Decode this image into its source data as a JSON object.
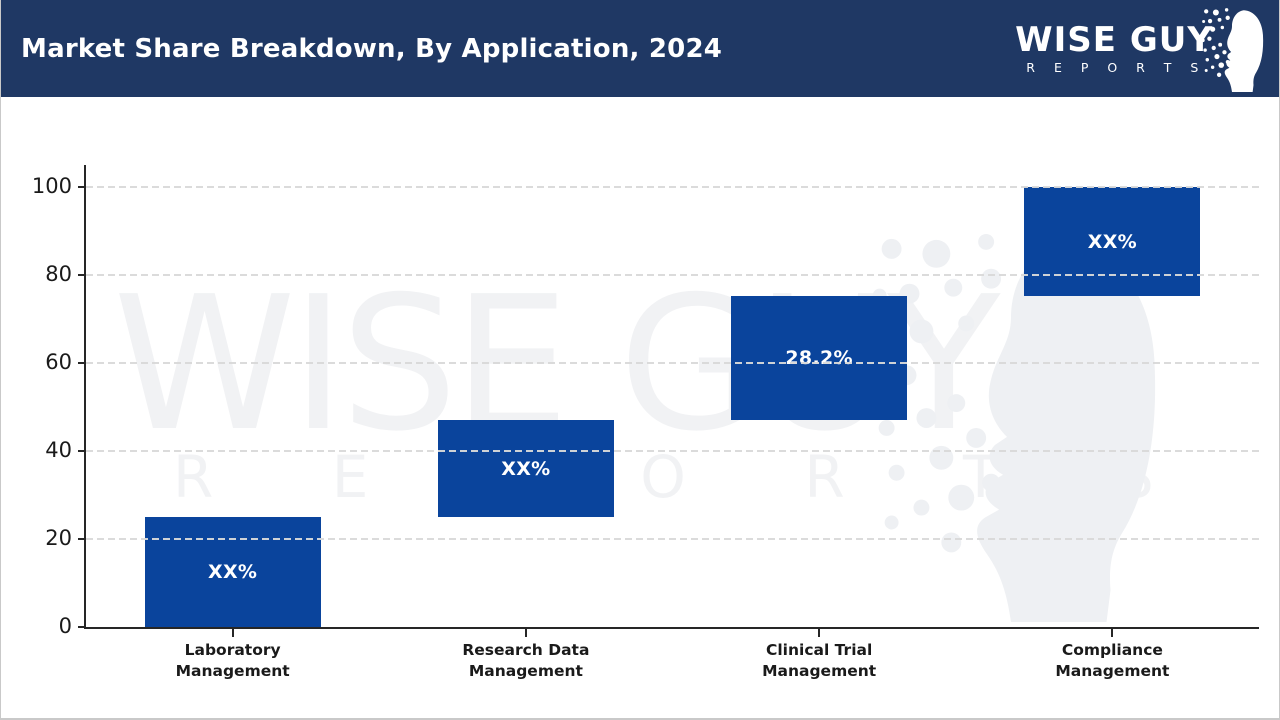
{
  "header": {
    "title": "Market Share Breakdown, By Application, 2024",
    "brand": {
      "name_top": "WISE GUY",
      "name_bottom": "R E P O R T S"
    }
  },
  "watermark": {
    "line1": "WISE GUY",
    "line2": "R E P O R T S"
  },
  "chart_data": {
    "type": "bar",
    "variant": "floating-waterfall",
    "title": "Market Share Breakdown, By Application, 2024",
    "categories": [
      "Laboratory Management",
      "Research Data Management",
      "Clinical Trial Management",
      "Compliance Management"
    ],
    "category_lines": [
      [
        "Laboratory",
        "Management"
      ],
      [
        "Research Data",
        "Management"
      ],
      [
        "Clinical Trial",
        "Management"
      ],
      [
        "Compliance",
        "Management"
      ]
    ],
    "series": [
      {
        "name": "Market share (%)",
        "segments": [
          {
            "category": "Laboratory Management",
            "start": 0,
            "end": 25,
            "label": "XX%"
          },
          {
            "category": "Research Data Management",
            "start": 25,
            "end": 47,
            "label": "XX%"
          },
          {
            "category": "Clinical Trial Management",
            "start": 47,
            "end": 75.2,
            "label": "28.2%"
          },
          {
            "category": "Compliance Management",
            "start": 75.2,
            "end": 100,
            "label": "XX%"
          }
        ]
      }
    ],
    "xlabel": "",
    "ylabel": "",
    "ylim": [
      0,
      105
    ],
    "yticks": [
      0,
      20,
      40,
      60,
      80,
      100
    ],
    "grid": {
      "horizontal": true,
      "style": "dashed",
      "drawn_over_bars": true
    },
    "legend": "none"
  },
  "colors": {
    "header_bg": "#1f3864",
    "bar": "#0a449c",
    "bar_label": "#ffffff",
    "axis": "#262626",
    "grid": "#d9d9d9",
    "tick_text": "#1a1a1a",
    "watermark": "#f1f2f4",
    "frame_border": "#c9c9c9"
  }
}
